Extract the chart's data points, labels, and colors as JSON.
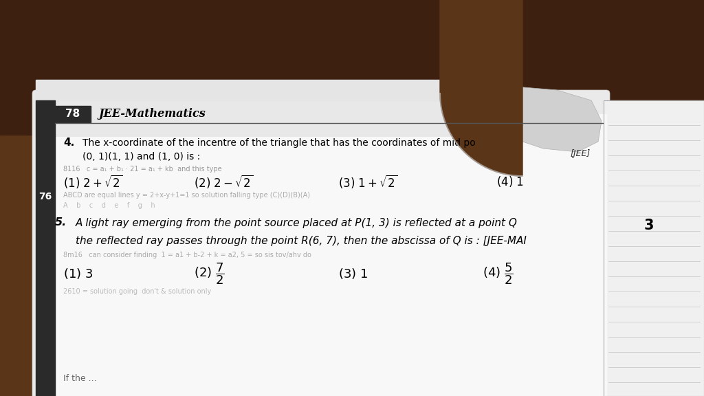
{
  "wood_color_top": "#3d2010",
  "wood_color_main": "#5a3518",
  "page_bg": "#e8e8e8",
  "page_white": "#f5f5f5",
  "header_box_bg": "#2a2a2a",
  "header_number": "78",
  "header_title": "JEE-Mathematics",
  "left_bar_bg": "#2a2a2a",
  "left_bar_number": "76",
  "q4_num": "4.",
  "q4_line1": "The x-coordinate of the incentre of the triangle that has the coordinates of mid po",
  "q4_line2": "(0, 1)(1, 1) and (1, 0) is :",
  "q4_tag": "[JEE]",
  "q4_opt1": "(1) $2+\\sqrt{2}$",
  "q4_opt2": "(2) $2-\\sqrt{2}$",
  "q4_opt3": "(3) $1+\\sqrt{2}$",
  "q4_opt4": "(4) 1",
  "q5_num": "5.",
  "q5_line1": "A light ray emerging from the point source placed at P(1, 3) is reflected at a point Q",
  "q5_line2": "the reflected ray passes through the point R(6, 7), then the abscissa of Q is : [JEE-MAI",
  "q5_opt1": "(1) 3",
  "q5_opt2": "(2) $\\dfrac{7}{2}$",
  "q5_opt3": "(3) 1",
  "q5_opt4": "(4) $\\dfrac{5}{2}$",
  "right_panel_number": "3",
  "bottom_text": "If the ...",
  "faint_text1": "8116   c = a₁ + b₁ · 21 = a₁ + kb  and this type",
  "faint_text2": "ABCD are equal lines y = 2+x-y+1=1 so solution falling type (C)(D)(B)(A)",
  "faint_text3": "8m16   can consider finding  1 = a1 + b-2 + k = a2, 5 = so sis tov/ahv do",
  "faint_text4": "2610 = solution going  don't & solution only"
}
